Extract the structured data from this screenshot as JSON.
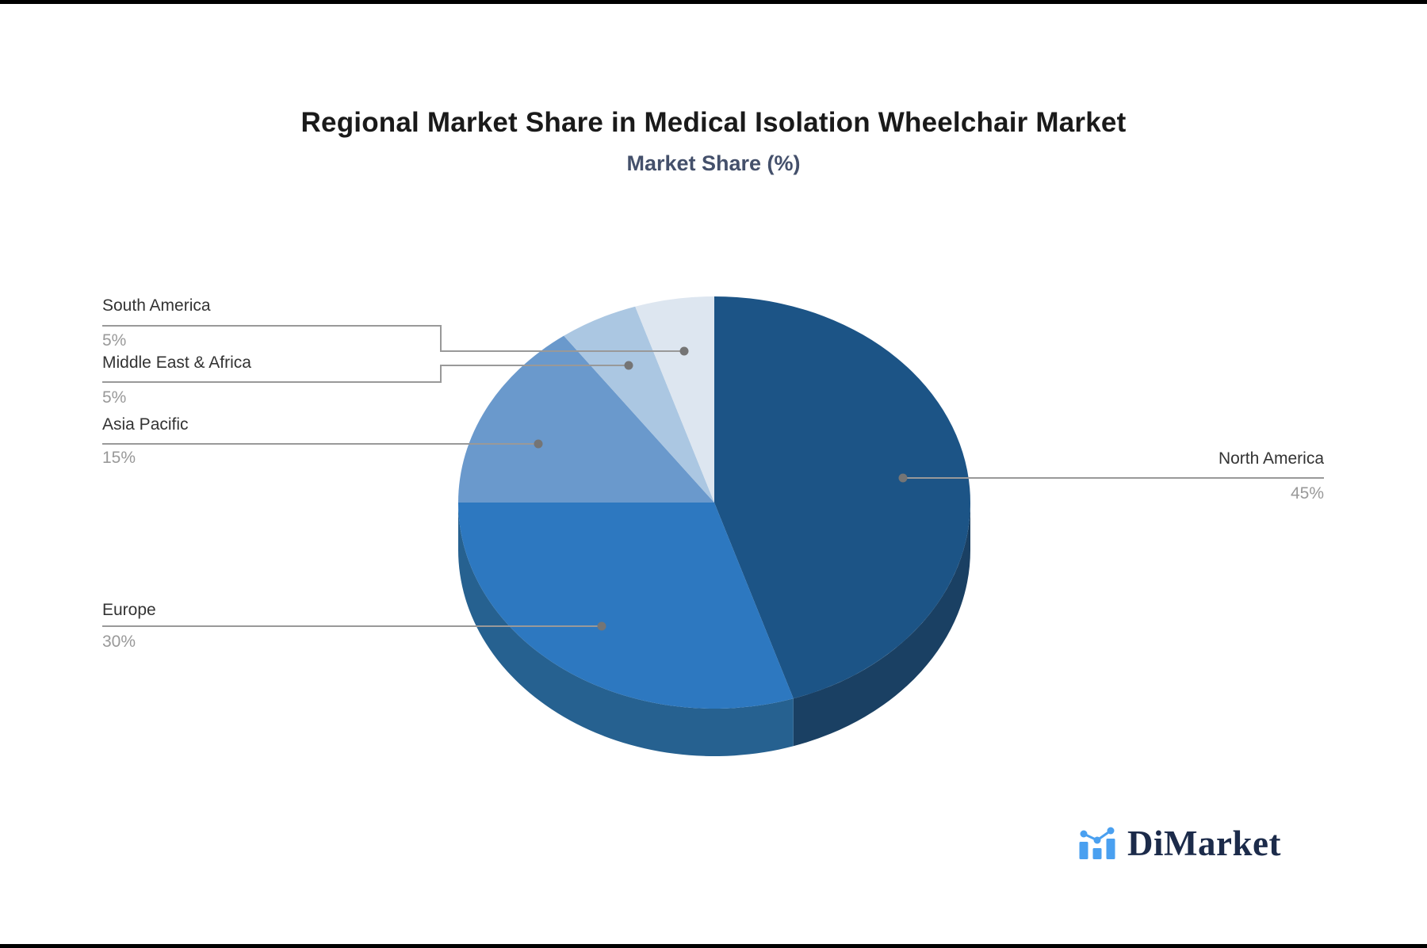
{
  "page": {
    "background": "#ffffff",
    "edge_bar_color": "#000000"
  },
  "header": {
    "title": "Regional Market Share in Medical Isolation Wheelchair Market",
    "subtitle": "Market Share (%)",
    "title_color": "#1a1a1a",
    "subtitle_color": "#44506b"
  },
  "chart_data": {
    "type": "pie",
    "title": "Regional Market Share in Medical Isolation Wheelchair Market",
    "subtitle": "Market Share (%)",
    "unit": "percent",
    "effect": "3d",
    "start_angle_deg": 0,
    "direction": "clockwise",
    "legend_position": "callout-labels",
    "slices": [
      {
        "name": "North America",
        "value": 45,
        "pct": "45%",
        "color": "#1c5486",
        "side_color": "#1a4063"
      },
      {
        "name": "Europe",
        "value": 30,
        "pct": "30%",
        "color": "#2d78c0",
        "side_color": "#266190"
      },
      {
        "name": "Asia Pacific",
        "value": 15,
        "pct": "15%",
        "color": "#6a99cc",
        "side_color": "#5d87b5"
      },
      {
        "name": "Middle East & Africa",
        "value": 5,
        "pct": "5%",
        "color": "#abc7e2",
        "side_color": "#97b1c9"
      },
      {
        "name": "South America",
        "value": 5,
        "pct": "5%",
        "color": "#dde6f0",
        "side_color": "#c3ccd8"
      }
    ],
    "callout_line_color": "#999999",
    "callout_dot_color": "#757575",
    "label_color": "#333333",
    "pct_color": "#999999"
  },
  "logo": {
    "text": "DiMarket",
    "text_color": "#1c2b4a",
    "icon": "bar-chart-icon",
    "icon_color": "#4aa0f0"
  }
}
